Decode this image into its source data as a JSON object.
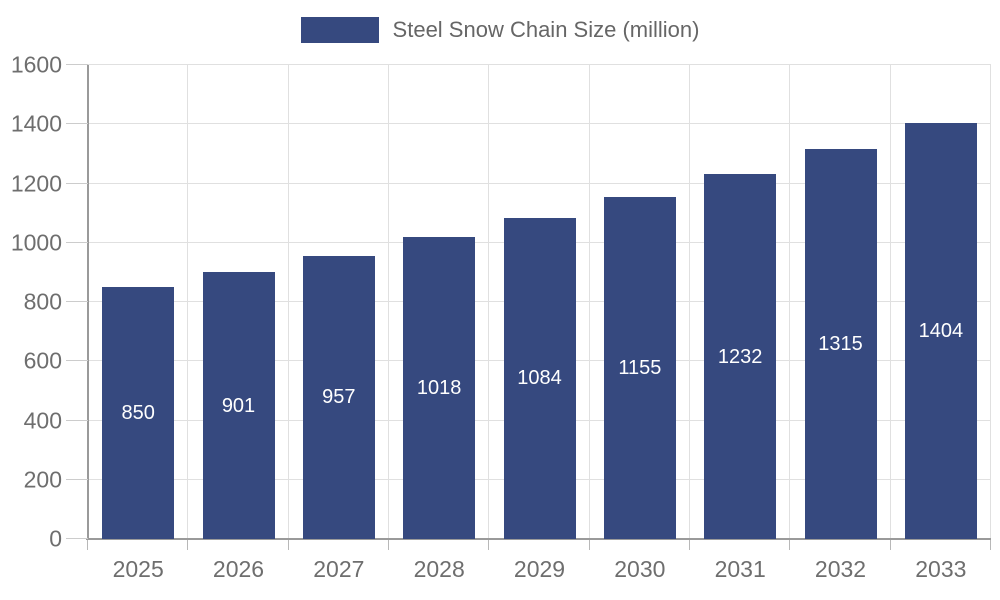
{
  "legend": {
    "label": "Steel Snow Chain Size (million)",
    "swatch_color": "#36497F"
  },
  "chart_data": {
    "type": "bar",
    "title": "",
    "xlabel": "",
    "ylabel": "",
    "categories": [
      "2025",
      "2026",
      "2027",
      "2028",
      "2029",
      "2030",
      "2031",
      "2032",
      "2033"
    ],
    "series": [
      {
        "name": "Steel Snow Chain Size (million)",
        "values": [
          850,
          901,
          957,
          1018,
          1084,
          1155,
          1232,
          1315,
          1404
        ]
      }
    ],
    "value_labels": [
      "850",
      "901",
      "957",
      "1018",
      "1084",
      "1155",
      "1232",
      "1315",
      "1404"
    ],
    "ylim": [
      0,
      1600
    ],
    "yticks": [
      0,
      200,
      400,
      600,
      800,
      1000,
      1200,
      1400,
      1600
    ],
    "grid": true,
    "legend_position": "top",
    "bar_color": "#36497F",
    "value_label_color": "#ffffff",
    "axis_label_color": "#6e6e6e",
    "gridline_color": "#e0e0e0",
    "axis_line_color": "#9a9a9a"
  }
}
